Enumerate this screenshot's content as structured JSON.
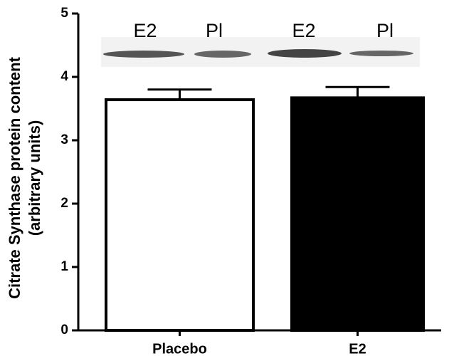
{
  "chart_data": {
    "type": "bar",
    "y_label": [
      "Citrate Synthase protein content",
      "(arbitrary units)"
    ],
    "categories": [
      "Placebo",
      "E2"
    ],
    "values": [
      3.64,
      3.67
    ],
    "errors": [
      0.16,
      0.17
    ],
    "colors": [
      "#ffffff",
      "#000000"
    ],
    "edge_color": "#000000",
    "ylim": [
      0,
      5
    ],
    "yticks": [
      0,
      1,
      2,
      3,
      4,
      5
    ],
    "inset_labels": [
      "E2",
      "Pl",
      "E2",
      "Pl"
    ]
  }
}
